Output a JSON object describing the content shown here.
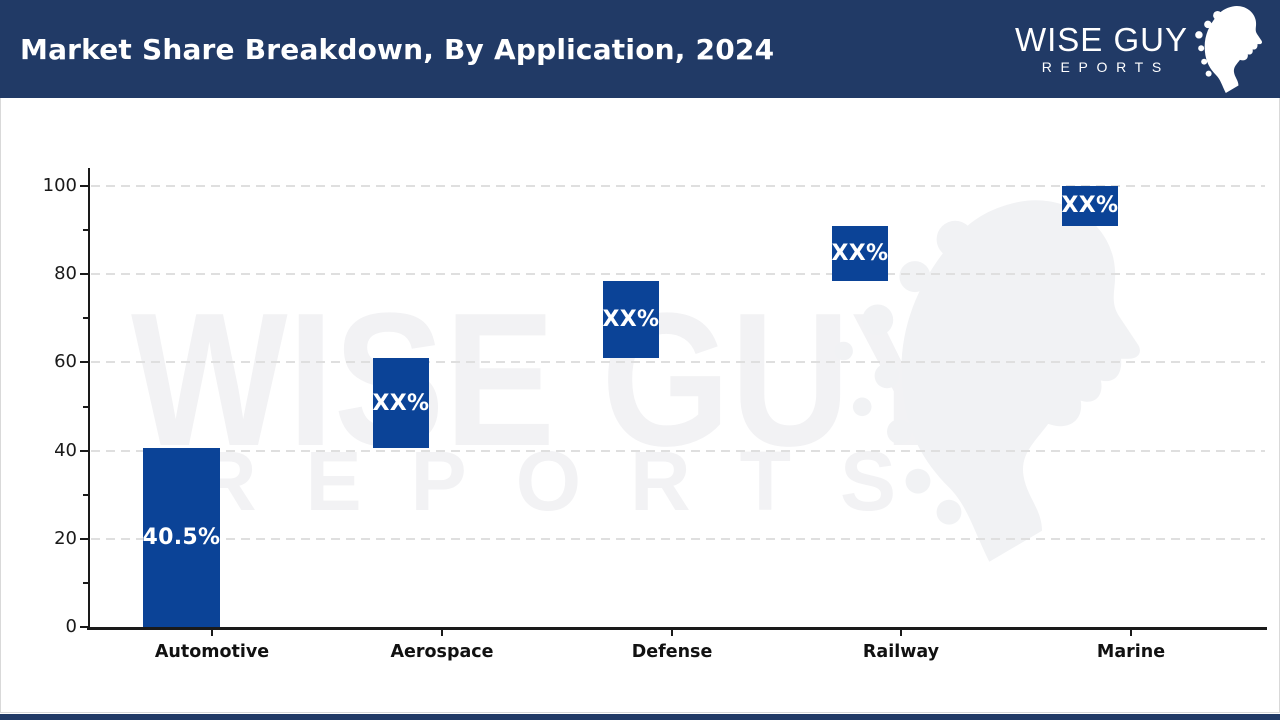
{
  "header": {
    "title": "Market Share Breakdown, By Application, 2024",
    "bg_color": "#213a66",
    "logo": {
      "wordmark": "WISE GUY",
      "subtext": "REPORTS"
    }
  },
  "watermark": {
    "line1": "WISE GUY",
    "line2": "REPORTS"
  },
  "footer": {
    "bg_color": "#213a66"
  },
  "chart_data": {
    "type": "bar",
    "subtype": "floating-waterfall",
    "title": "Market Share Breakdown, By Application, 2024",
    "xlabel": "",
    "ylabel": "",
    "ylim": [
      0,
      100
    ],
    "yticks": [
      0,
      20,
      40,
      60,
      80,
      100
    ],
    "grid": "horizontal-dashed",
    "legend": "none",
    "bar_color": "#0b4397",
    "bar_label_color": "#ffffff",
    "categories": [
      "Automotive",
      "Aerospace",
      "Defense",
      "Railway",
      "Marine"
    ],
    "segments": [
      {
        "category": "Automotive",
        "start": 0,
        "end": 40.5,
        "label": "40.5%"
      },
      {
        "category": "Aerospace",
        "start": 40.5,
        "end": 61,
        "label": "XX%"
      },
      {
        "category": "Defense",
        "start": 61,
        "end": 78.5,
        "label": "XX%"
      },
      {
        "category": "Railway",
        "start": 78.5,
        "end": 91,
        "label": "XX%"
      },
      {
        "category": "Marine",
        "start": 91,
        "end": 100,
        "label": "XX%"
      }
    ]
  }
}
